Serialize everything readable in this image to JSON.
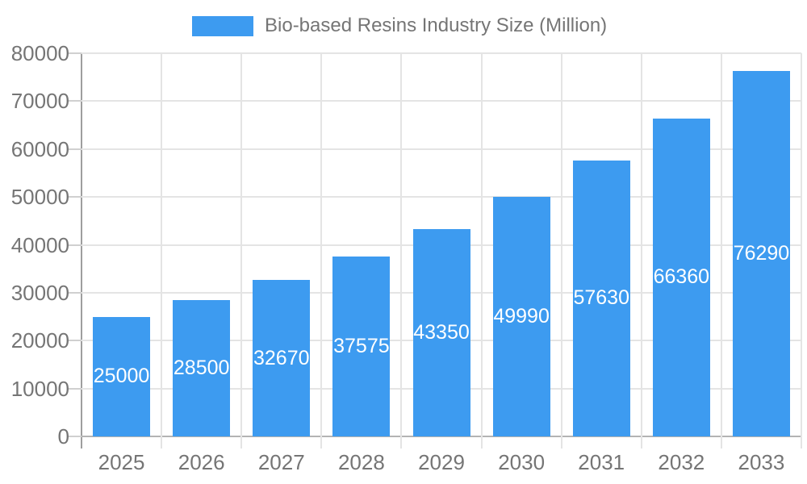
{
  "legend": {
    "label": "Bio-based Resins Industry Size (Million)",
    "swatch_color": "#3d9bf0"
  },
  "chart_data": {
    "type": "bar",
    "title": "Bio-based Resins Industry Size (Million)",
    "categories": [
      "2025",
      "2026",
      "2027",
      "2028",
      "2029",
      "2030",
      "2031",
      "2032",
      "2033"
    ],
    "values": [
      25000,
      28500,
      32670,
      37575,
      43350,
      49990,
      57630,
      66360,
      76290
    ],
    "value_labels": [
      "25000",
      "28500",
      "32670",
      "37575",
      "43350",
      "49990",
      "57630",
      "66360",
      "76290"
    ],
    "xlabel": "",
    "ylabel": "",
    "ylim": [
      0,
      80000
    ],
    "ytick_step": 10000,
    "ytick_labels": [
      "0",
      "10000",
      "20000",
      "30000",
      "40000",
      "50000",
      "60000",
      "70000",
      "80000"
    ],
    "grid": "on",
    "legend_position": "top",
    "value_label_position": "inside-middle",
    "colors": {
      "bar": "#3d9bf0",
      "value_label": "#ffffff",
      "axis_text": "#757575",
      "gridline": "#e4e4e4",
      "y_axis_line": "#9e9e9e",
      "baseline": "#b3b3b3"
    }
  }
}
